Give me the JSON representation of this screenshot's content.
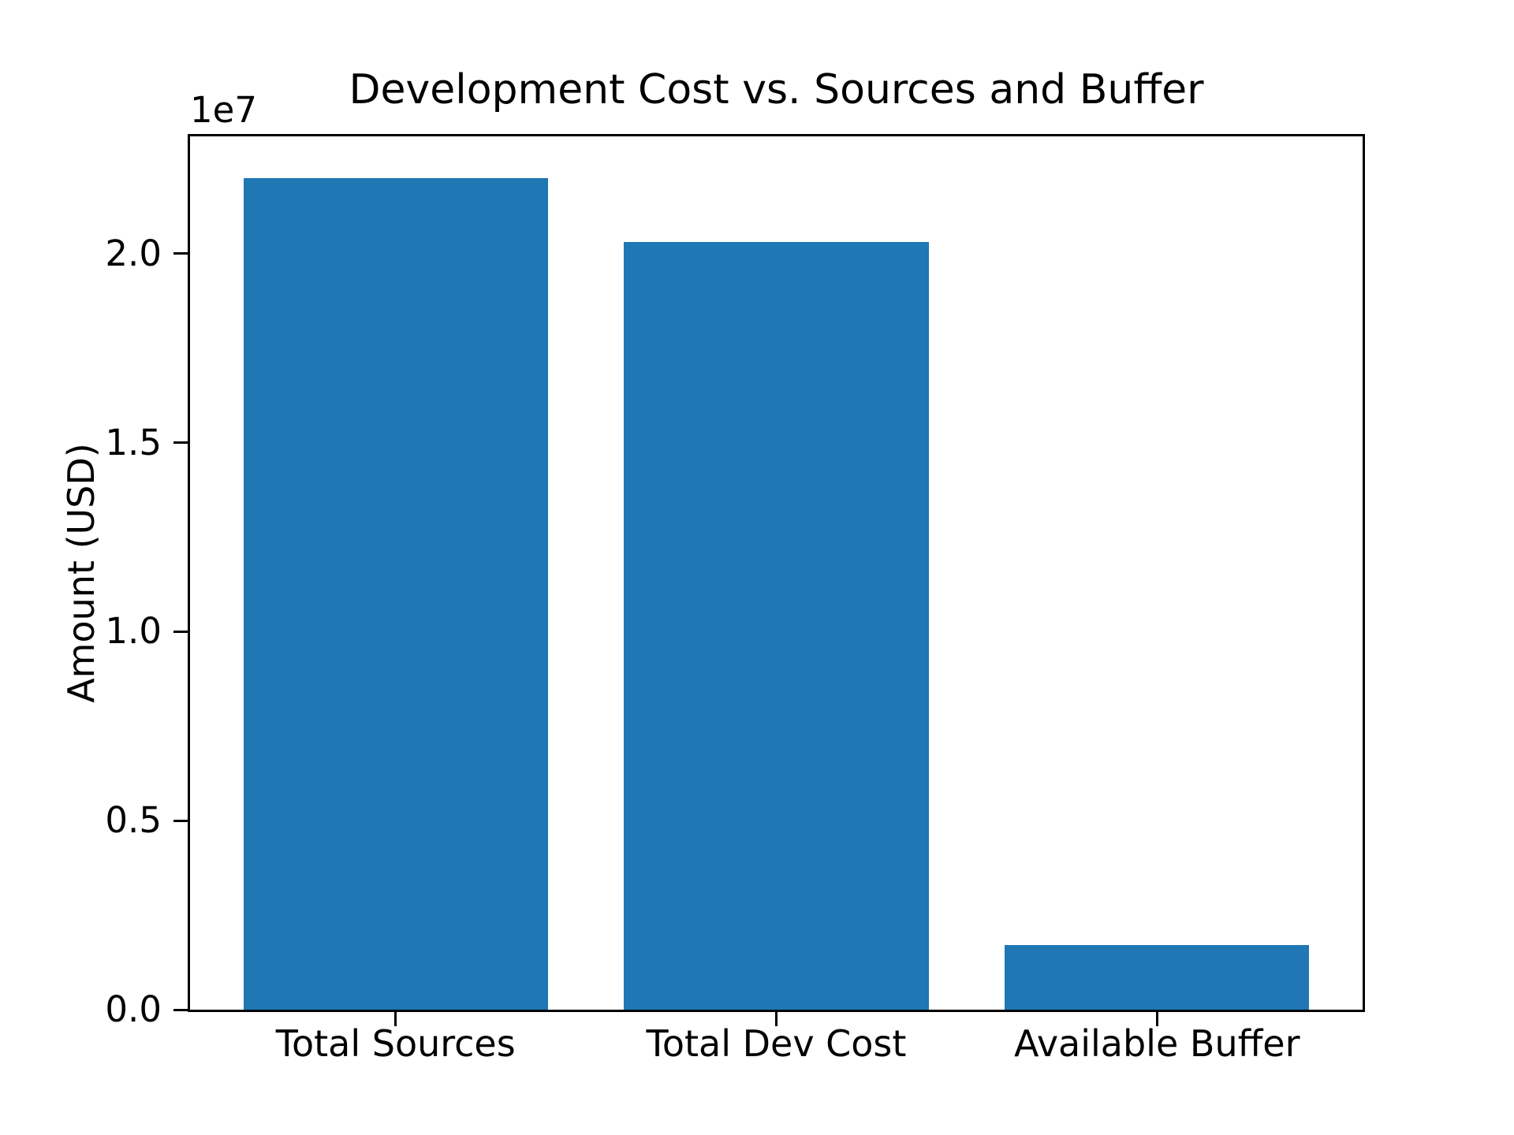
{
  "figure": {
    "title": "Development Cost vs. Sources and Buffer",
    "y_axis_label": "Amount (USD)",
    "y_offset_text": "1e7"
  },
  "chart_data": {
    "type": "bar",
    "title": "Development Cost vs. Sources and Buffer",
    "xlabel": "",
    "ylabel": "Amount (USD)",
    "categories": [
      "Total Sources",
      "Total Dev Cost",
      "Available Buffer"
    ],
    "values": [
      22000000,
      20300000,
      1700000
    ],
    "bar_color": "#1f77b4",
    "bar_width_data_units": 0.8,
    "xlim": [
      -0.54,
      2.54
    ],
    "ylim": [
      0,
      23100000
    ],
    "ytick_values": [
      0,
      5000000,
      10000000,
      15000000,
      20000000
    ],
    "ytick_labels": [
      "0.0",
      "0.5",
      "1.0",
      "1.5",
      "2.0"
    ],
    "y_offset_multiplier_text": "1e7",
    "grid": false,
    "legend": "none"
  }
}
